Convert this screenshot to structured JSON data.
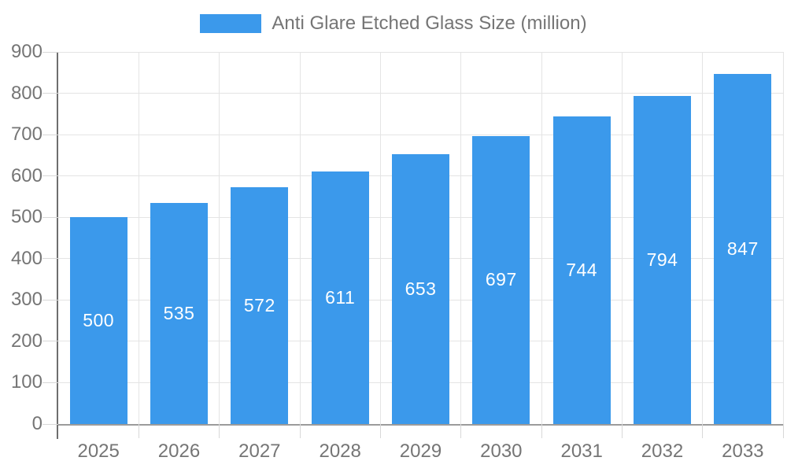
{
  "chart_data": {
    "type": "bar",
    "title": "",
    "categories": [
      "2025",
      "2026",
      "2027",
      "2028",
      "2029",
      "2030",
      "2031",
      "2032",
      "2033"
    ],
    "series": [
      {
        "name": "Anti Glare Etched Glass Size (million)",
        "values": [
          500,
          535,
          572,
          611,
          653,
          697,
          744,
          794,
          847
        ]
      }
    ],
    "xlabel": "",
    "ylabel": "",
    "ylim": [
      0,
      900
    ],
    "ytick_step": 100,
    "grid": true,
    "legend_position": "top",
    "data_labels_position": "inside-center"
  },
  "colors": {
    "bar": "#3B99EB",
    "bar_label": "#FFFFFF",
    "axis_text": "#757575",
    "gridline": "#E4E4E4",
    "tick": "#D8D8D8",
    "y_axis_line": "#6E6E6E",
    "x_axis_line": "#9B9B9B",
    "background": "#FFFFFF"
  }
}
